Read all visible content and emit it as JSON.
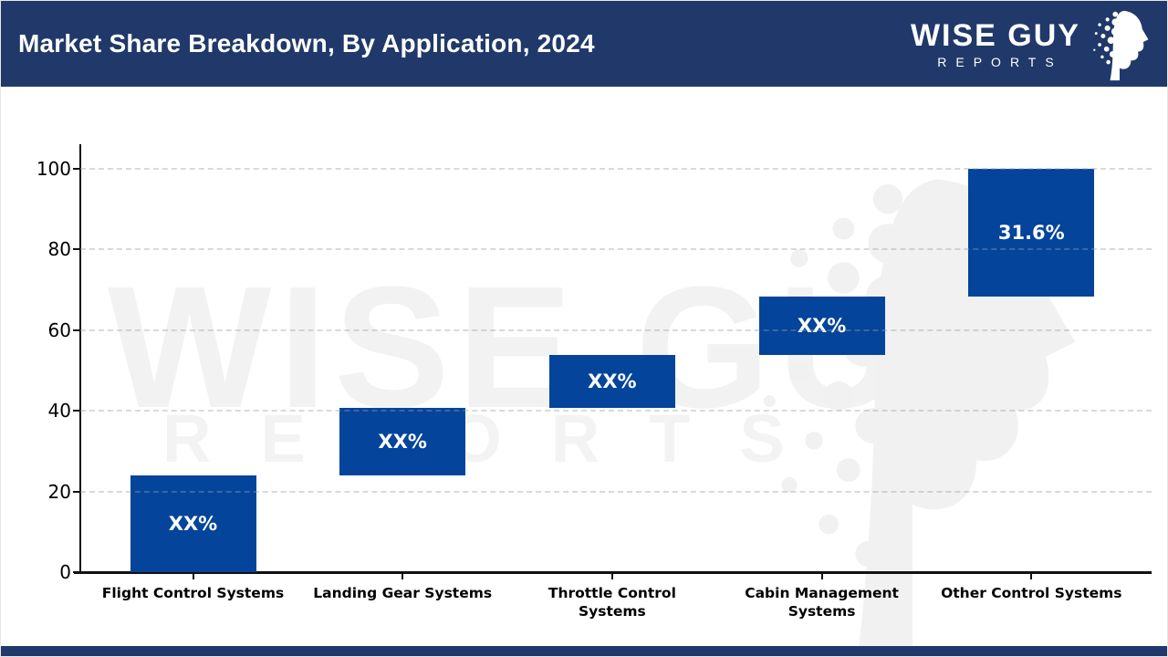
{
  "header": {
    "title": "Market Share Breakdown, By Application, 2024",
    "bg_color": "#20396a",
    "logo_line1": "WISE GUY",
    "logo_line2": "REPORTS"
  },
  "watermark": {
    "line1": "WISE GUY",
    "line2": "REPORTS"
  },
  "footer": {
    "bg_color": "#20396a"
  },
  "chart_data": {
    "type": "bar",
    "subtype": "waterfall",
    "title": "Market Share Breakdown, By Application, 2024",
    "categories": [
      "Flight Control Systems",
      "Landing Gear Systems",
      "Throttle Control Systems",
      "Cabin Management Systems",
      "Other Control Systems"
    ],
    "segments": [
      {
        "category": "Flight Control Systems",
        "start": 0,
        "end": 24,
        "value": 24,
        "label": "XX%"
      },
      {
        "category": "Landing Gear Systems",
        "start": 24,
        "end": 40.8,
        "value": 16.8,
        "label": "XX%"
      },
      {
        "category": "Throttle Control Systems",
        "start": 40.8,
        "end": 53.9,
        "value": 13.1,
        "label": "XX%"
      },
      {
        "category": "Cabin Management Systems",
        "start": 53.9,
        "end": 68.4,
        "value": 14.5,
        "label": "XX%"
      },
      {
        "category": "Other Control Systems",
        "start": 68.4,
        "end": 100,
        "value": 31.6,
        "label": "31.6%"
      }
    ],
    "xlabel": "",
    "ylabel": "",
    "yticks": [
      0,
      20,
      40,
      60,
      80,
      100
    ],
    "ylim": [
      0,
      108
    ],
    "grid": "horizontal-dashed",
    "legend": "none",
    "bar_color": "#04449b",
    "bar_label_color": "#ffffff",
    "axis_color": "#111111",
    "gridline_color": "#dcdcdc"
  }
}
